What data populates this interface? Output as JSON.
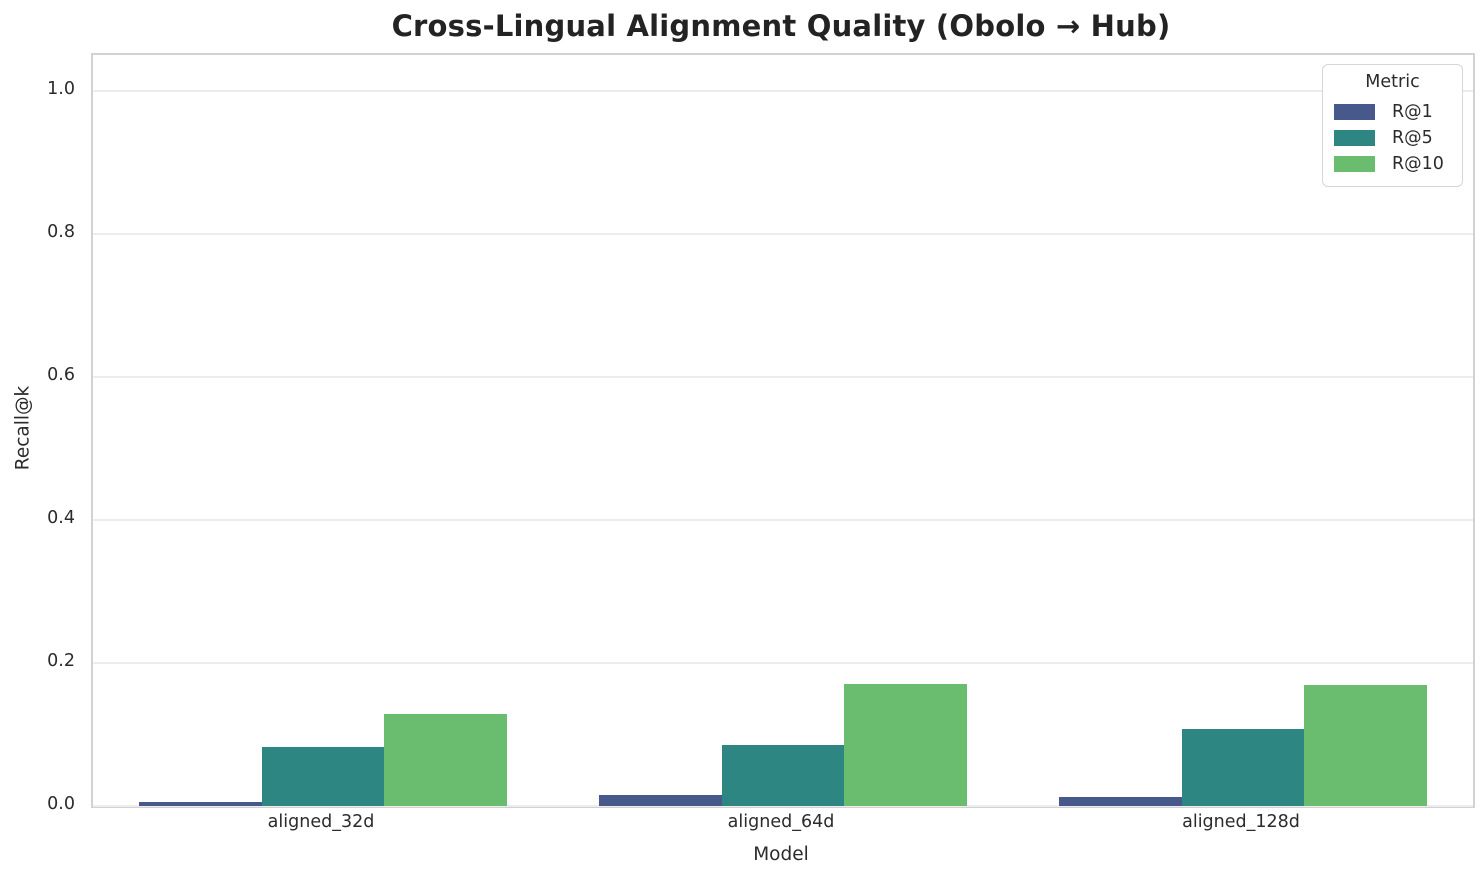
{
  "chart_data": {
    "type": "bar",
    "title": "Cross-Lingual Alignment Quality (Obolo → Hub)",
    "xlabel": "Model",
    "ylabel": "Recall@k",
    "categories": [
      "aligned_32d",
      "aligned_64d",
      "aligned_128d"
    ],
    "series": [
      {
        "name": "R@1",
        "color": "#46598a",
        "values": [
          0.006,
          0.015,
          0.012
        ]
      },
      {
        "name": "R@5",
        "color": "#2e8683",
        "values": [
          0.083,
          0.086,
          0.107
        ]
      },
      {
        "name": "R@10",
        "color": "#6abd6e",
        "values": [
          0.129,
          0.171,
          0.169
        ]
      }
    ],
    "yticks": [
      0.0,
      0.2,
      0.4,
      0.6,
      0.8,
      1.0
    ],
    "ylim": [
      0,
      1.05
    ],
    "grid": true,
    "legend_title": "Metric",
    "legend_position": "upper right",
    "colors": {
      "grid": "#ededed",
      "spine": "#d2d2d2",
      "text": "#262626"
    }
  }
}
